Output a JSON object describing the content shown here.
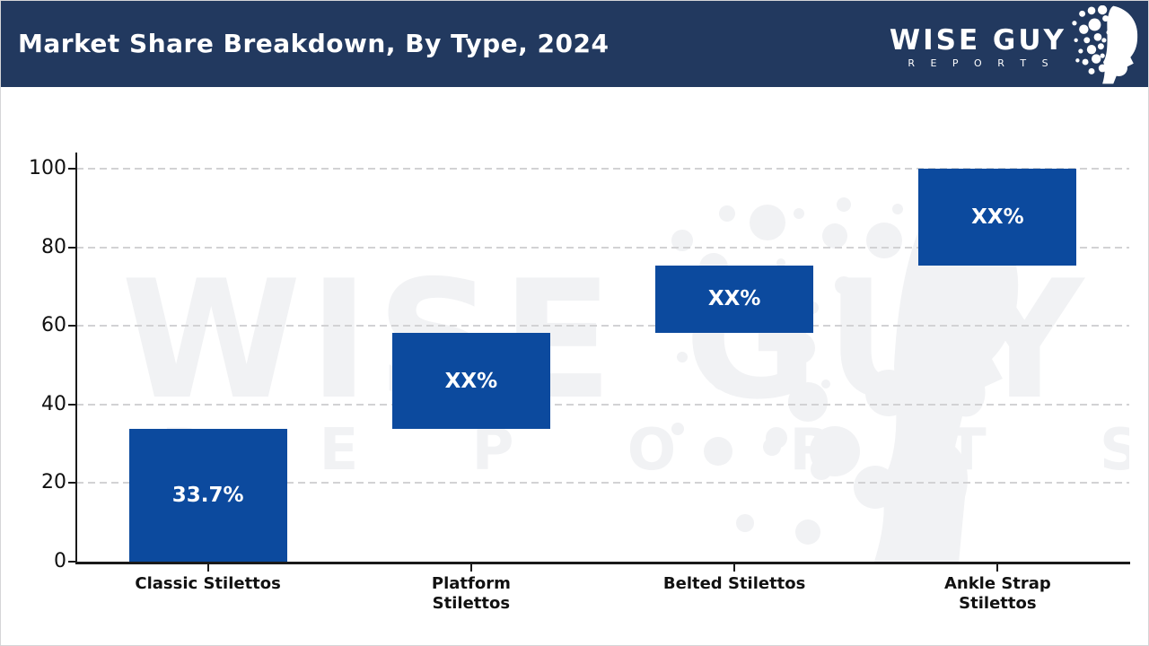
{
  "header": {
    "title": "Market Share Breakdown, By Type, 2024",
    "logo": {
      "line1": "WISE GUY",
      "line2": "R E P O R T S"
    }
  },
  "watermark": {
    "line1": "WISE GUY",
    "line2": "R E P O R T S"
  },
  "chart_data": {
    "type": "bar",
    "subtype": "waterfall",
    "title": "Market Share Breakdown, By Type, 2024",
    "categories": [
      "Classic Stilettos",
      "Platform Stilettos",
      "Belted Stilettos",
      "Ankle Strap Stilettos"
    ],
    "segments": [
      {
        "category": "Classic Stilettos",
        "start": 0,
        "end": 33.7,
        "label": "33.7%"
      },
      {
        "category": "Platform Stilettos",
        "start": 33.7,
        "end": 58.3,
        "label": "XX%"
      },
      {
        "category": "Belted Stilettos",
        "start": 58.3,
        "end": 75.3,
        "label": "XX%"
      },
      {
        "category": "Ankle Strap Stilettos",
        "start": 75.3,
        "end": 100,
        "label": "XX%"
      }
    ],
    "ylim": [
      0,
      100
    ],
    "yticks": [
      0,
      20,
      40,
      60,
      80,
      100
    ],
    "grid": "dashed-horizontal",
    "legend": "none",
    "bar_color": "#0c4a9e",
    "bar_label_color": "#ffffff"
  },
  "colors": {
    "header_bg": "#22395f",
    "title_text": "#ffffff",
    "bar": "#0c4a9e",
    "grid": "#d2d2d4",
    "axis": "#1a1a1a",
    "watermark": "#f1f2f4",
    "page_border": "#d5d5d8"
  }
}
